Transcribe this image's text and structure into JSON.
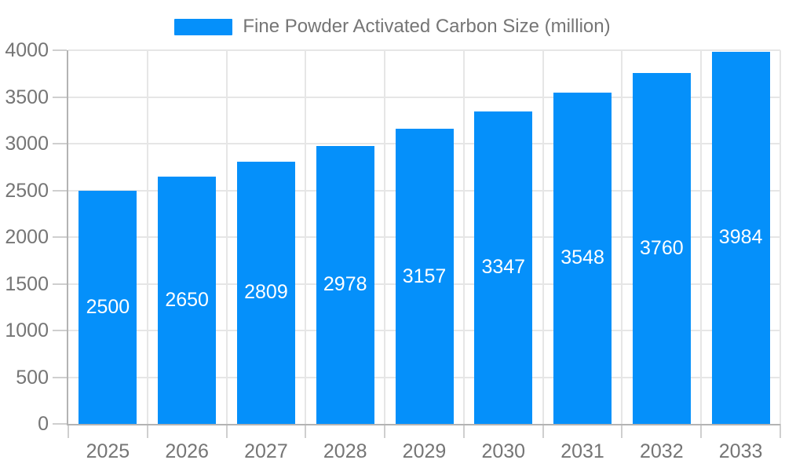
{
  "legend": {
    "items": [
      {
        "label": "Fine Powder Activated Carbon Size (million)",
        "color": "#0590FA"
      }
    ]
  },
  "chart_data": {
    "type": "bar",
    "title": "Fine Powder Activated Carbon Size (million)",
    "categories": [
      "2025",
      "2026",
      "2027",
      "2028",
      "2029",
      "2030",
      "2031",
      "2032",
      "2033"
    ],
    "series": [
      {
        "name": "Fine Powder Activated Carbon Size (million)",
        "color": "#0590FA",
        "values": [
          2500,
          2650,
          2809,
          2978,
          3157,
          3347,
          3548,
          3760,
          3984
        ]
      }
    ],
    "value_labels_shown": true,
    "xlabel": "",
    "ylabel": "",
    "ylim": [
      0,
      4000
    ],
    "ytick_labels": [
      "0",
      "500",
      "1000",
      "1500",
      "2000",
      "2500",
      "3000",
      "3500",
      "4000"
    ],
    "grid": true,
    "legend_position": "top",
    "colors": {
      "bar": "#0590FA",
      "axis_text": "#757575",
      "grid_line": "#e6e6e6",
      "axis_line": "#b3b3b3",
      "tick_line": "#cfcfcf",
      "value_label": "#ffffff",
      "background": "#ffffff"
    }
  }
}
